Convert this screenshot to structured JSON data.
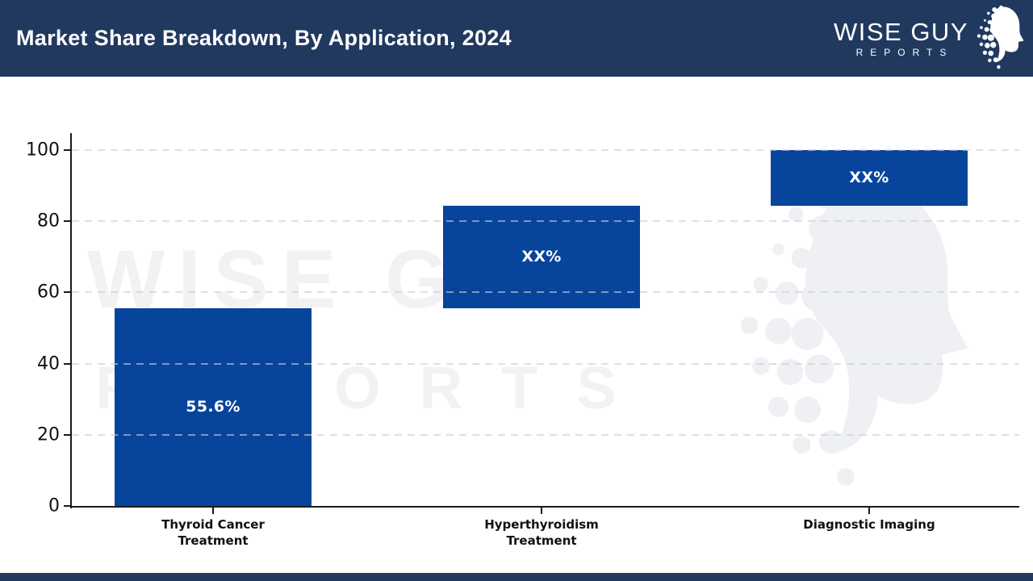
{
  "header": {
    "title": "Market Share Breakdown, By Application, 2024",
    "logo": {
      "line1": "WISE GUY",
      "line2": "REPORTS"
    },
    "bg_color": "#21395f"
  },
  "watermark": {
    "line1": "WISE GUY",
    "line2": "REPORTS"
  },
  "footer": {
    "bg_color": "#21395f"
  },
  "chart_data": {
    "type": "bar",
    "subtype": "floating-segment-waterfall",
    "title": "Market Share Breakdown, By Application, 2024",
    "categories": [
      [
        "Thyroid Cancer",
        "Treatment"
      ],
      [
        "Hyperthyroidism",
        "Treatment"
      ],
      [
        "Diagnostic Imaging"
      ]
    ],
    "segments": [
      {
        "category": "Thyroid Cancer Treatment",
        "start": 0,
        "end": 55.6,
        "label": "55.6%"
      },
      {
        "category": "Hyperthyroidism Treatment",
        "start": 55.6,
        "end": 84.4,
        "label": "XX%"
      },
      {
        "category": "Diagnostic Imaging",
        "start": 84.4,
        "end": 100,
        "label": "XX%"
      }
    ],
    "yticks": [
      0,
      20,
      40,
      60,
      80,
      100
    ],
    "ylim": [
      0,
      105
    ],
    "xlabel": "",
    "ylabel": "",
    "grid": true,
    "legend": "none",
    "bar_color": "#07449c",
    "grid_color": "#d9dce1",
    "axis_color": "#1a1a1a"
  }
}
